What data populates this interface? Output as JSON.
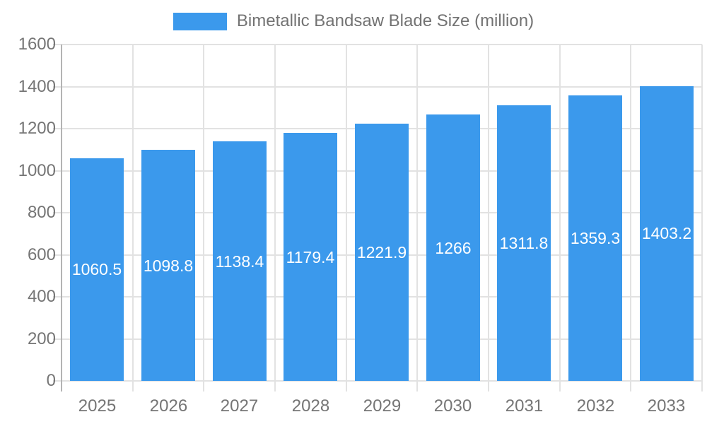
{
  "legend": {
    "label": "Bimetallic Bandsaw Blade Size (million)",
    "swatch_color": "#3b99ec"
  },
  "chart_data": {
    "type": "bar",
    "title": "Bimetallic Bandsaw Blade Size (million)",
    "categories": [
      "2025",
      "2026",
      "2027",
      "2028",
      "2029",
      "2030",
      "2031",
      "2032",
      "2033"
    ],
    "values": [
      1060.5,
      1098.8,
      1138.4,
      1179.4,
      1221.9,
      1266,
      1311.8,
      1359.3,
      1403.2
    ],
    "value_labels": [
      "1060.5",
      "1098.8",
      "1138.4",
      "1179.4",
      "1221.9",
      "1266",
      "1311.8",
      "1359.3",
      "1403.2"
    ],
    "xlabel": "",
    "ylabel": "",
    "ylim": [
      0,
      1600
    ],
    "ytick_step": 200,
    "grid": true,
    "legend_position": "top-center",
    "bar_color": "#3b99ec",
    "value_label_color": "#ffffff",
    "axis_text_color": "#757575",
    "grid_color": "#e2e2e2",
    "axis_line_color": "#b3b3b3"
  }
}
